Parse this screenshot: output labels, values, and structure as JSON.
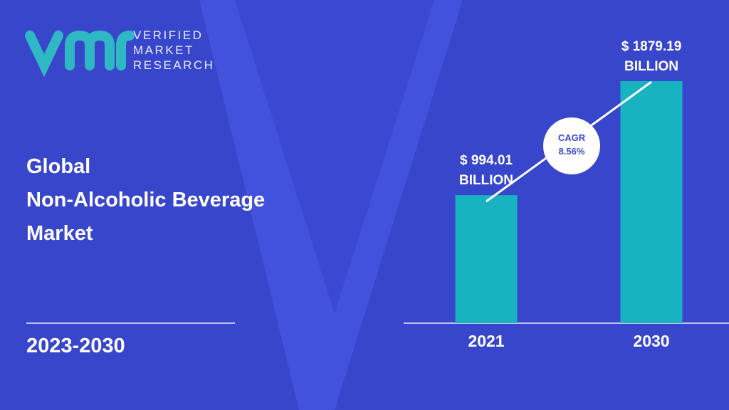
{
  "logo": {
    "lines": [
      "VERIFIED",
      "MARKET",
      "RESEARCH"
    ]
  },
  "title_lines": [
    "Global",
    "Non-Alcoholic Beverage",
    "Market"
  ],
  "period": "2023-2030",
  "chart_data": {
    "type": "bar",
    "categories": [
      "2021",
      "2030"
    ],
    "values": [
      994.01,
      1879.19
    ],
    "value_labels": [
      "$ 994.01 BILLION",
      "$ 1879.19 BILLION"
    ],
    "color": "#18b3c0",
    "annotations": [
      "CAGR",
      "8.56%"
    ]
  }
}
